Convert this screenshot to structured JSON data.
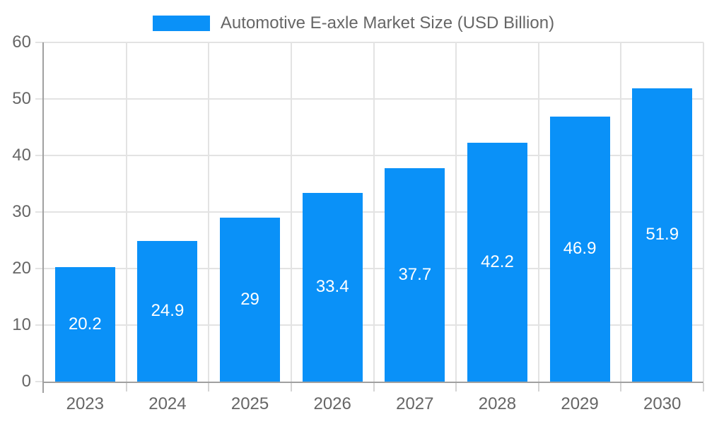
{
  "legend": {
    "label": "Automotive E-axle Market Size (USD Billion)"
  },
  "chart_data": {
    "type": "bar",
    "title": "Automotive E-axle Market Size (USD Billion)",
    "categories": [
      "2023",
      "2024",
      "2025",
      "2026",
      "2027",
      "2028",
      "2029",
      "2030"
    ],
    "values": [
      20.2,
      24.9,
      29,
      33.4,
      37.7,
      42.2,
      46.9,
      51.9
    ],
    "value_labels": [
      "20.2",
      "24.9",
      "29",
      "33.4",
      "37.7",
      "42.2",
      "46.9",
      "51.9"
    ],
    "xlabel": "",
    "ylabel": "",
    "ylim": [
      0,
      60
    ],
    "yticks": [
      0,
      10,
      20,
      30,
      40,
      50,
      60
    ],
    "grid": true,
    "legend_position": "top",
    "value_label_position": "center-inside"
  },
  "colors": {
    "bar": "#0a91f8",
    "grid": "#e3e3e3",
    "axis": "#a0a0a0",
    "tick": "#d4d4d4",
    "text": "#666666",
    "value_label_text": "#ffffff",
    "background": "#ffffff"
  }
}
